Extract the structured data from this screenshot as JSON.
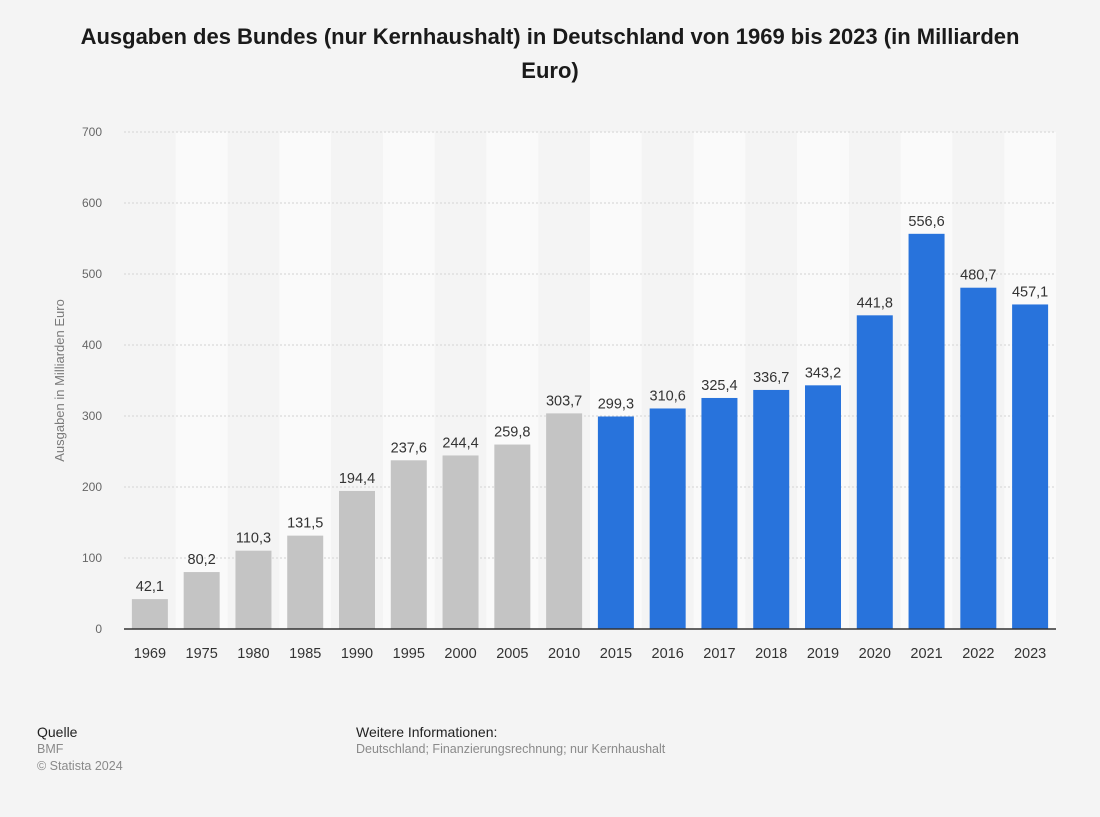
{
  "chart_data": {
    "type": "bar",
    "title": "Ausgaben des Bundes (nur Kernhaushalt) in Deutschland von 1969 bis 2023 (in Milliarden Euro)",
    "ylabel": "Ausgaben in Milliarden Euro",
    "xlabel": "",
    "ylim": [
      0,
      700
    ],
    "yticks": [
      0,
      100,
      200,
      300,
      400,
      500,
      600,
      700
    ],
    "grid": true,
    "categories": [
      "1969",
      "1975",
      "1980",
      "1985",
      "1990",
      "1995",
      "2000",
      "2005",
      "2010",
      "2015",
      "2016",
      "2017",
      "2018",
      "2019",
      "2020",
      "2021",
      "2022",
      "2023"
    ],
    "values": [
      42.1,
      80.2,
      110.3,
      131.5,
      194.4,
      237.6,
      244.4,
      259.8,
      303.7,
      299.3,
      310.6,
      325.4,
      336.7,
      343.2,
      441.8,
      556.6,
      480.7,
      457.1
    ],
    "value_labels": [
      "42,1",
      "80,2",
      "110,3",
      "131,5",
      "194,4",
      "237,6",
      "244,4",
      "259,8",
      "303,7",
      "299,3",
      "310,6",
      "325,4",
      "336,7",
      "343,2",
      "441,8",
      "556,6",
      "480,7",
      "457,1"
    ],
    "bar_colors": [
      "#c4c4c4",
      "#c4c4c4",
      "#c4c4c4",
      "#c4c4c4",
      "#c4c4c4",
      "#c4c4c4",
      "#c4c4c4",
      "#c4c4c4",
      "#c4c4c4",
      "#2873dc",
      "#2873dc",
      "#2873dc",
      "#2873dc",
      "#2873dc",
      "#2873dc",
      "#2873dc",
      "#2873dc",
      "#2873dc"
    ]
  },
  "footer": {
    "source_heading": "Quelle",
    "source": "BMF",
    "copyright": "© Statista 2024",
    "info_heading": "Weitere Informationen:",
    "info": "Deutschland; Finanzierungsrechnung; nur Kernhaushalt"
  },
  "colors": {
    "gray_bar": "#c4c4c4",
    "blue_bar": "#2873dc",
    "background": "#f4f4f4"
  }
}
